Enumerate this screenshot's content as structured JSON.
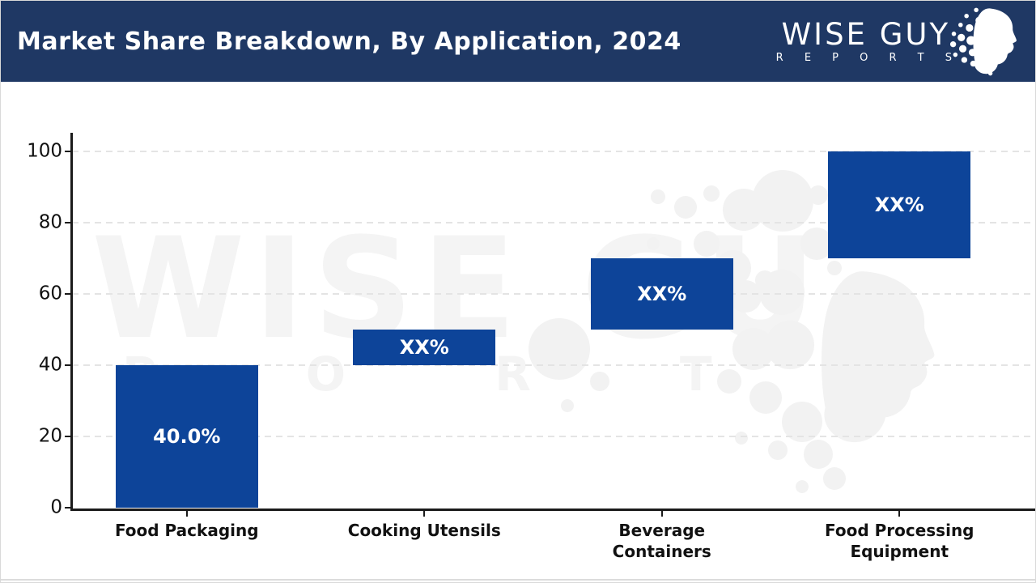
{
  "header": {
    "title": "Market Share Breakdown, By Application, 2024",
    "logo": {
      "name": "WISE GUY",
      "sub": "R E P O R T S"
    }
  },
  "watermark": {
    "line1": "WISE GU",
    "line2": "P O R T S"
  },
  "chart_data": {
    "type": "bar",
    "subtype": "waterfall",
    "title": "Market Share Breakdown, By Application, 2024",
    "categories": [
      "Food Packaging",
      "Cooking Utensils",
      "Beverage\nContainers",
      "Food Processing\nEquipment"
    ],
    "segments": [
      {
        "category": "Food Packaging",
        "start": 0,
        "end": 40,
        "label": "40.0%"
      },
      {
        "category": "Cooking Utensils",
        "start": 40,
        "end": 50,
        "label": "XX%"
      },
      {
        "category": "Beverage Containers",
        "start": 50,
        "end": 70,
        "label": "XX%"
      },
      {
        "category": "Food Processing Equipment",
        "start": 70,
        "end": 100,
        "label": "XX%"
      }
    ],
    "xlabel": "",
    "ylabel": "",
    "yticks": [
      0,
      20,
      40,
      60,
      80,
      100
    ],
    "ylim": [
      0,
      100
    ],
    "grid": "horizontal-dashed",
    "legend": "none",
    "colors": {
      "bar": "#0d4499",
      "bar_label": "#ffffff",
      "axis": "#1a1a1a",
      "gridline": "#e4e4e4",
      "tick_label": "#111111",
      "header_bg": "#1f3864",
      "header_text": "#ffffff",
      "watermark": "#f2f2f2"
    }
  }
}
